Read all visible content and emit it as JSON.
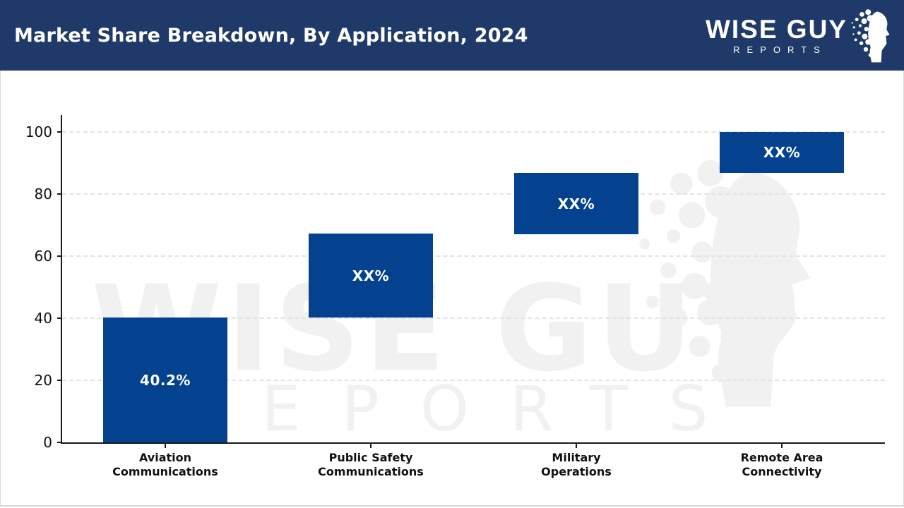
{
  "header": {
    "title": "Market Share Breakdown, By Application, 2024",
    "brand_line1": "WISE GUY",
    "brand_line2": "REPORTS"
  },
  "watermark": {
    "line1": "WISE GUY",
    "line2": "REPORTS"
  },
  "colors": {
    "header_bg": "#1f3a68",
    "bar": "#04418f",
    "axis": "#1a1a1a",
    "grid": "#e3e3e3",
    "watermark": "#f1f1f1",
    "bar_label_text": "#ffffff"
  },
  "chart_data": {
    "type": "bar",
    "subtype": "floating-segment-waterfall",
    "title": "Market Share Breakdown, By Application, 2024",
    "categories": [
      "Aviation\nCommunications",
      "Public Safety\nCommunications",
      "Military\nOperations",
      "Remote Area\nConnectivity"
    ],
    "segments": [
      {
        "category": "Aviation Communications",
        "start": 0,
        "end": 40.2,
        "label": "40.2%"
      },
      {
        "category": "Public Safety Communications",
        "start": 40.2,
        "end": 67.2,
        "label": "XX%"
      },
      {
        "category": "Military Operations",
        "start": 67.2,
        "end": 86.9,
        "label": "XX%"
      },
      {
        "category": "Remote Area Connectivity",
        "start": 86.9,
        "end": 100,
        "label": "XX%"
      }
    ],
    "yticks": [
      0,
      20,
      40,
      60,
      80,
      100
    ],
    "ylim": [
      0,
      105
    ],
    "xlabel": "",
    "ylabel": "",
    "grid": "horizontal-dashed",
    "legend": false
  }
}
